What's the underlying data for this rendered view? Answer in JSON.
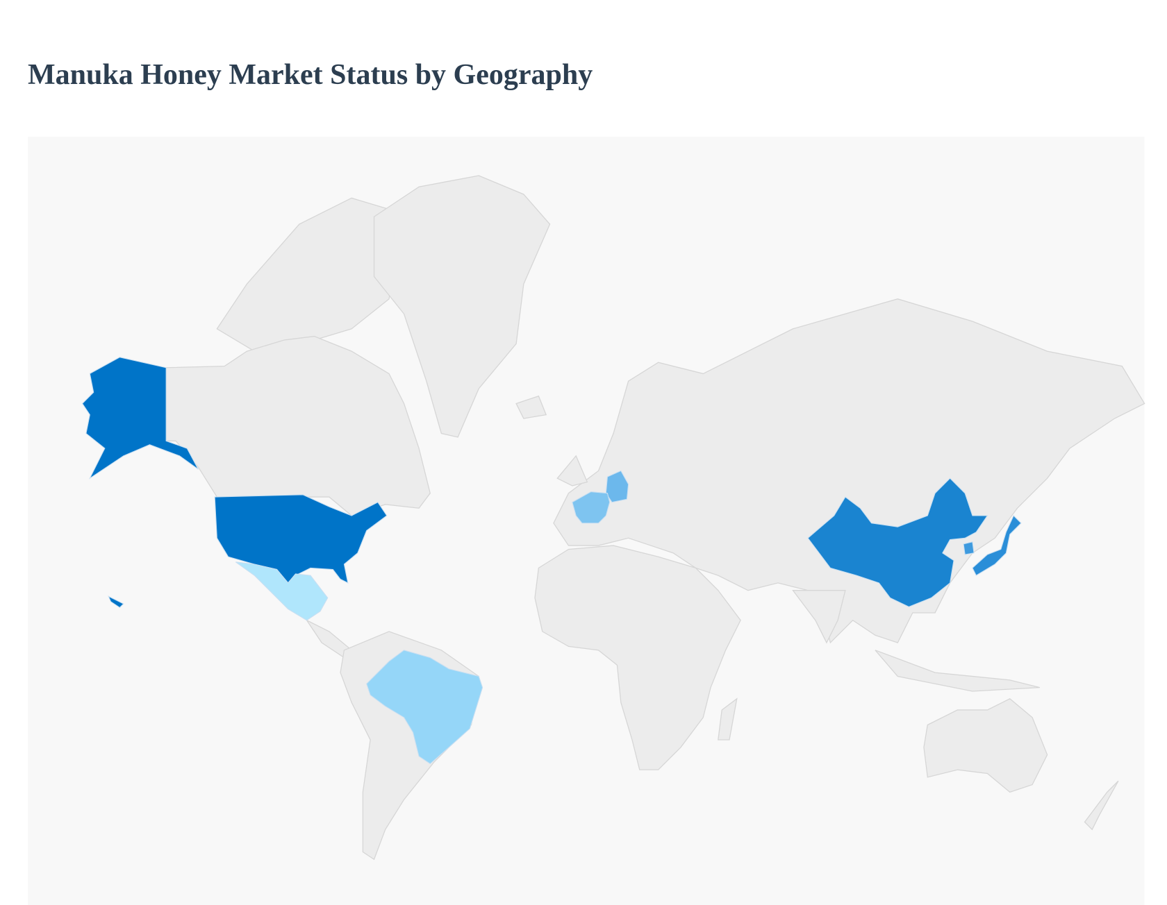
{
  "header": {
    "title": "Manuka Honey Market Status by Geography"
  },
  "chart_data": {
    "type": "geo",
    "projection": "mercator",
    "background_color": "#f8f8f8",
    "default_land_color": "#ececec",
    "border_color": "#d6d6d6",
    "legend": "none",
    "regions": [
      {
        "code": "US",
        "level": 5,
        "color": "#0074c8"
      },
      {
        "code": "CN",
        "level": 4,
        "color": "#1a84d0"
      },
      {
        "code": "JP",
        "level": 4,
        "color": "#2a8ed8"
      },
      {
        "code": "KR",
        "level": 3,
        "color": "#3e9ade"
      },
      {
        "code": "DE",
        "level": 2,
        "color": "#6cb8ec"
      },
      {
        "code": "FR",
        "level": 2,
        "color": "#7ec4f0"
      },
      {
        "code": "BR",
        "level": 1,
        "color": "#95d6f8"
      },
      {
        "code": "MX",
        "level": 0,
        "color": "#b0e6fc"
      }
    ]
  }
}
